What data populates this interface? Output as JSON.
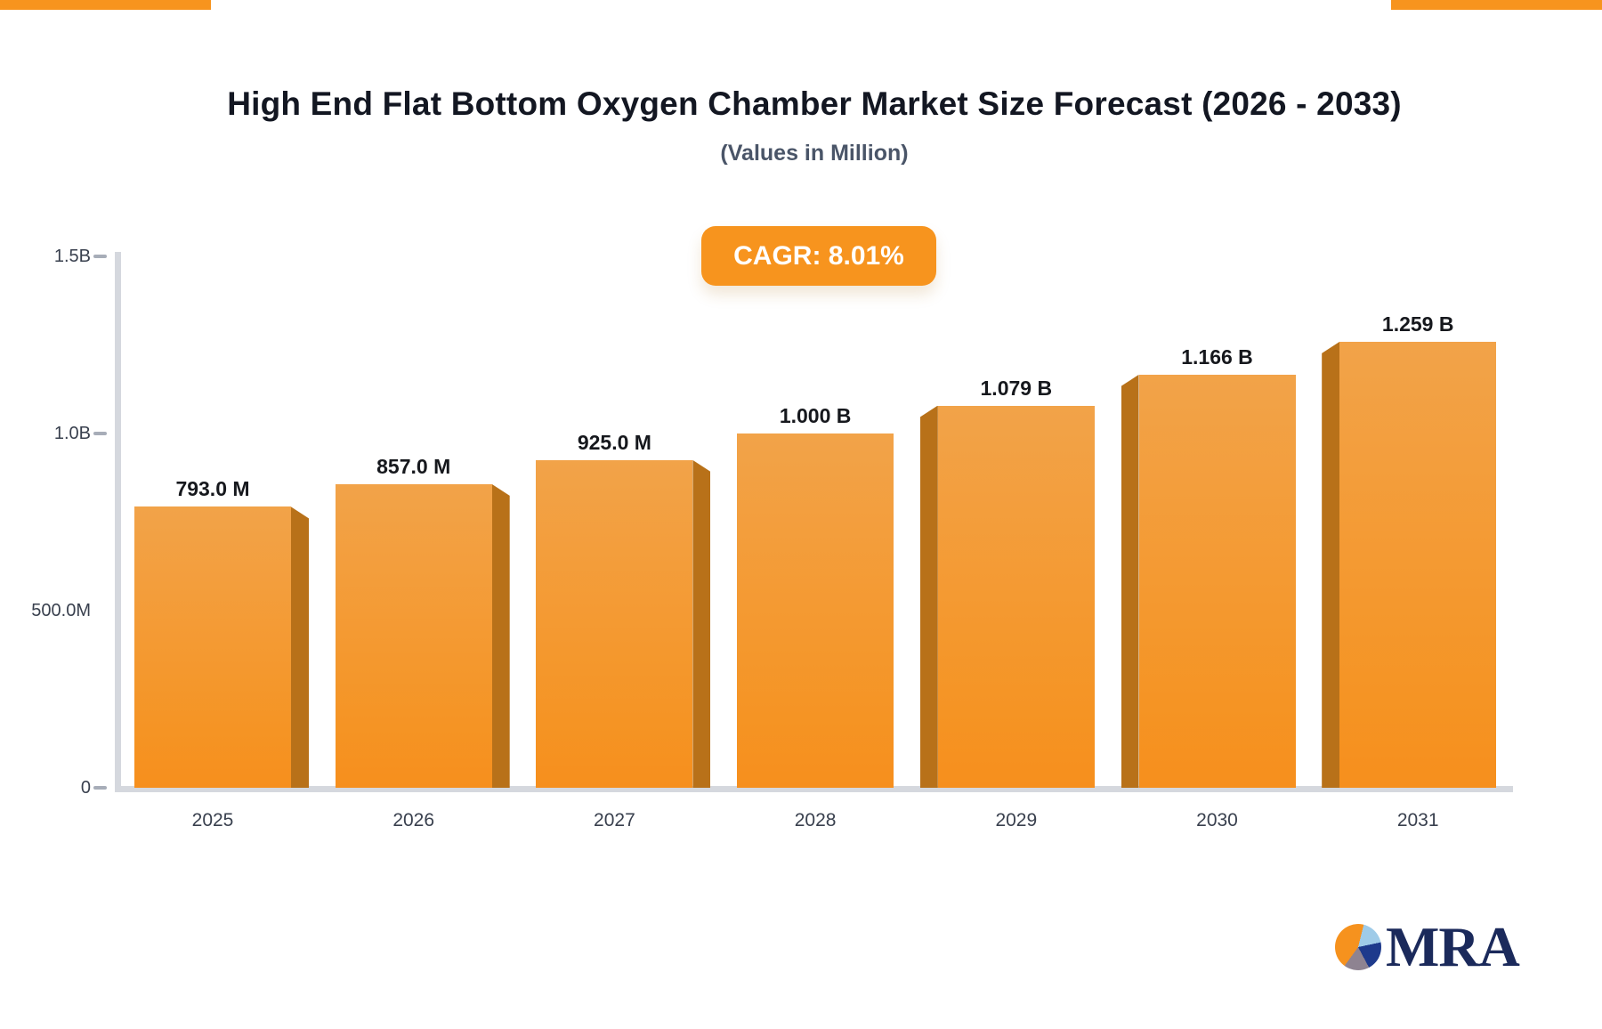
{
  "page": {
    "title": "High End Flat Bottom Oxygen Chamber Market Size Forecast (2026 - 2033)",
    "subtitle": "(Values in Million)",
    "cagr_badge_label": "CAGR: 8.01%",
    "logo_text": "MRA"
  },
  "colors": {
    "accent_orange": "#F7941E",
    "bar_face_top": "#F2A349",
    "bar_face_bottom": "#F68F1D",
    "bar_side": "#B87119",
    "axis_gray": "#D5D8DE",
    "text_dark": "#39404E",
    "logo_navy": "#1B2A5B"
  },
  "chart_data": {
    "type": "bar",
    "title": "High End Flat Bottom Oxygen Chamber Market Size Forecast (2026 - 2033)",
    "subtitle": "(Values in Million)",
    "cagr": "CAGR: 8.01%",
    "categories": [
      "2025",
      "2026",
      "2027",
      "2028",
      "2029",
      "2030",
      "2031"
    ],
    "values_in_millions": [
      793,
      857,
      925,
      1000,
      1079,
      1166,
      1259
    ],
    "bar_value_labels": [
      "793.0 M",
      "857.0 M",
      "925.0 M",
      "1.000 B",
      "1.079 B",
      "1.166 B",
      "1.259 B"
    ],
    "xlabel": "",
    "ylabel": "",
    "ylim": [
      0,
      1500
    ],
    "grid": false,
    "legend": "none",
    "y_axis": {
      "min_m": 0,
      "max_m": 1500,
      "ticks": [
        {
          "label": "1.5B",
          "value_m": 1500,
          "dash": true
        },
        {
          "label": "1.0B",
          "value_m": 1000,
          "dash": true
        },
        {
          "label": "500.0M",
          "value_m": 500,
          "dash": false
        },
        {
          "label": "0",
          "value_m": 0,
          "dash": true
        }
      ]
    }
  }
}
